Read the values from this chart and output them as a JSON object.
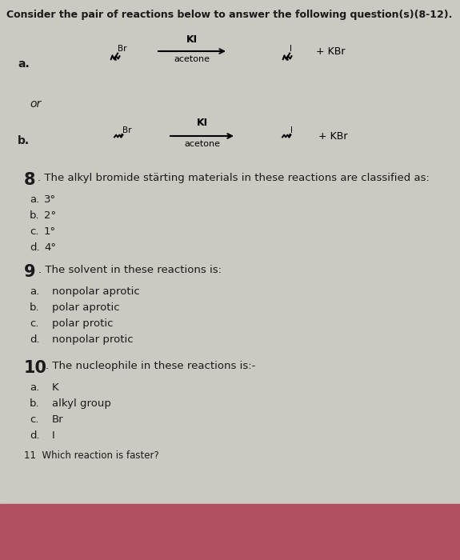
{
  "bg_color": "#ccc8c2",
  "paper_color": "#e8e4de",
  "text_color": "#1a1a1a",
  "title": "Consider the pair of reactions below to answer the following question(s)(8-12).",
  "reaction_label_a": "a.",
  "reaction_label_b": "b.",
  "or_text": "or",
  "reagent_a_above": "KI",
  "reagent_a_below": "acetone",
  "reagent_b_above": "KI",
  "reagent_b_below": "acetone",
  "br_label": "Br",
  "i_label": "I",
  "kbr_label": "+ KBr",
  "q8_num": "8",
  "q8_text": ". The alkyl bromide stärting materials in these reactions are classified as:",
  "q8_choices_letters": [
    "a.",
    "b.",
    "c.",
    "d."
  ],
  "q8_choices_text": [
    "3°",
    "2°",
    "1°",
    "4°"
  ],
  "q9_num": "9",
  "q9_text": ". The solvent in these reactions is:",
  "q9_choices_letters": [
    "a.",
    "b.",
    "c.",
    "d."
  ],
  "q9_choices_text": [
    "nonpolar aprotic",
    "polar aprotic",
    "polar protic",
    "nonpolar protic"
  ],
  "q10_num": "10",
  "q10_text": ". The nucleophile in these reactions is:-",
  "q10_choices_letters": [
    "a.",
    "b.",
    "c.",
    "d."
  ],
  "q10_choices_text": [
    "K",
    "alkyl group",
    "Br",
    "I"
  ],
  "q11_text": "11  Which reaction is faster?"
}
